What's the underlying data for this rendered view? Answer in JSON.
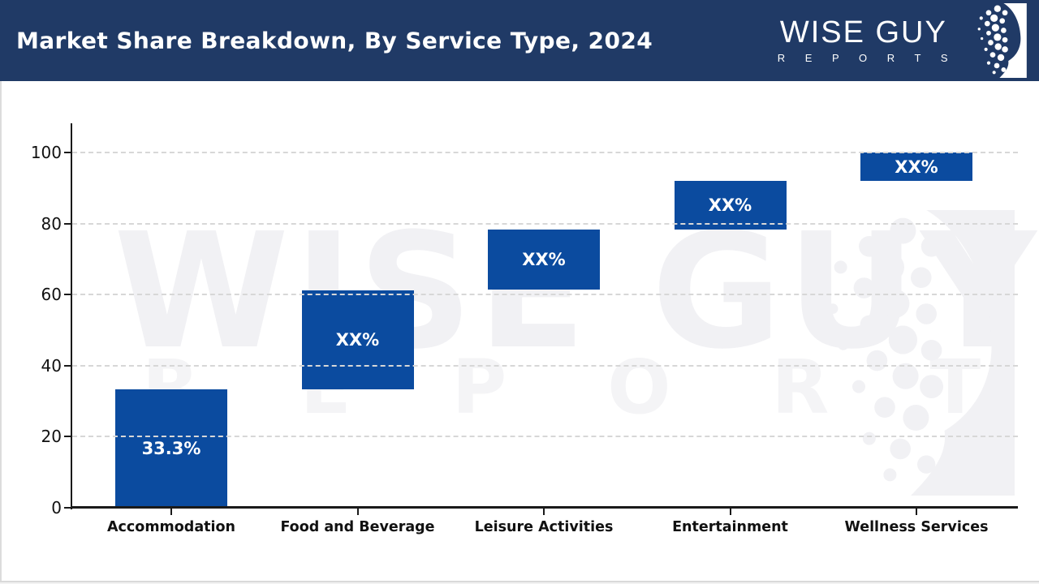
{
  "header": {
    "title": "Market Share Breakdown, By Service Type, 2024",
    "bg_color": "#203a66",
    "logo": {
      "line1": "WISE GUY",
      "line2": "R E P O R T S"
    }
  },
  "watermark": {
    "line1": "WISE GUY",
    "line2": "R E P O R T S"
  },
  "chart_data": {
    "type": "bar",
    "subtype": "waterfall-floating-bars",
    "title": "Market Share Breakdown, By Service Type, 2024",
    "categories": [
      "Accommodation",
      "Food and Beverage",
      "Leisure Activities",
      "Entertainment",
      "Wellness Services"
    ],
    "segments": [
      {
        "category": "Accommodation",
        "start": 0,
        "end": 33.3,
        "label": "33.3%"
      },
      {
        "category": "Food and Beverage",
        "start": 33.3,
        "end": 61.3,
        "label": "XX%"
      },
      {
        "category": "Leisure Activities",
        "start": 61.3,
        "end": 78.3,
        "label": "XX%"
      },
      {
        "category": "Entertainment",
        "start": 78.3,
        "end": 92.0,
        "label": "XX%"
      },
      {
        "category": "Wellness Services",
        "start": 92.0,
        "end": 100.0,
        "label": "XX%"
      }
    ],
    "y_ticks": [
      0,
      20,
      40,
      60,
      80,
      100
    ],
    "ylim": [
      0,
      100
    ],
    "xlabel": "",
    "ylabel": "",
    "grid": "horizontal-dashed",
    "legend": "none",
    "bar_color": "#0b4b9f",
    "bar_label_color": "#ffffff",
    "axis_color": "#1a1a1a"
  }
}
